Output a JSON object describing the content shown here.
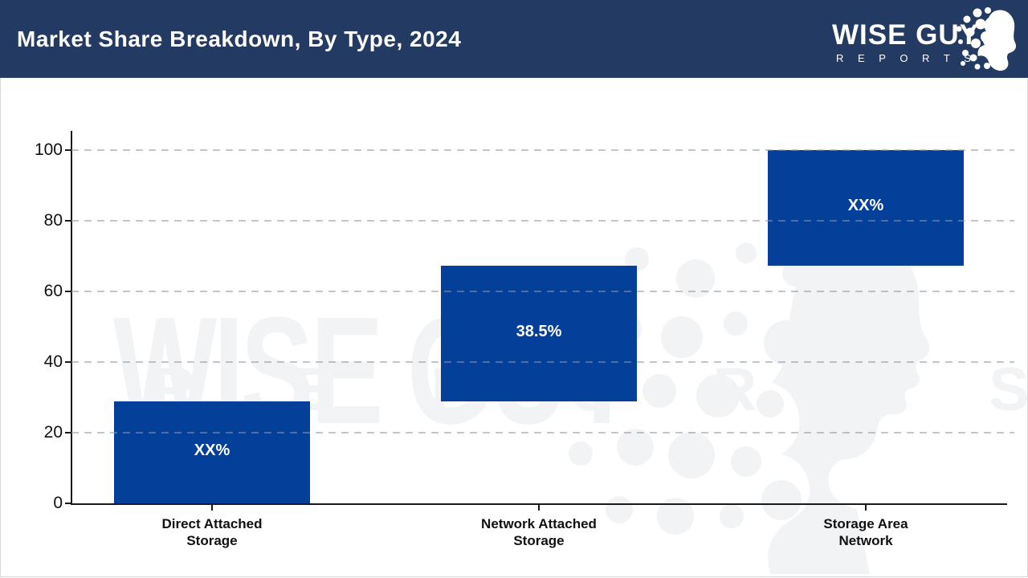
{
  "header": {
    "title": "Market Share Breakdown, By Type, 2024",
    "logo": {
      "line1": "WISE GUY",
      "line2": "R E P O R T S"
    }
  },
  "watermark": {
    "line1": "WISE GUY",
    "line2": "R E P O R T S"
  },
  "chart_data": {
    "type": "bar",
    "subtype": "waterfall",
    "title": "Market Share Breakdown, By Type, 2024",
    "categories": [
      [
        "Direct Attached",
        "Storage"
      ],
      [
        "Network Attached",
        "Storage"
      ],
      [
        "Storage Area",
        "Network"
      ]
    ],
    "segments": [
      {
        "category": "Direct Attached Storage",
        "start": 0,
        "end": 28.8,
        "label": "XX%"
      },
      {
        "category": "Network Attached Storage",
        "start": 28.8,
        "end": 67.3,
        "label": "38.5%"
      },
      {
        "category": "Storage Area Network",
        "start": 67.3,
        "end": 100,
        "label": "XX%"
      }
    ],
    "yticks": [
      0,
      20,
      40,
      60,
      80,
      100
    ],
    "ylim": [
      0,
      105
    ],
    "xlabel": "",
    "ylabel": "",
    "grid": "horizontal-dashed",
    "legend": "none",
    "colors": {
      "bar": "#04409a",
      "bar_label": "#ffffff",
      "header_bg": "#233a63",
      "header_text": "#ffffff",
      "axis": "#1a1a1a",
      "grid": "#d4d4d4",
      "watermark": "#f2f3f5"
    }
  }
}
